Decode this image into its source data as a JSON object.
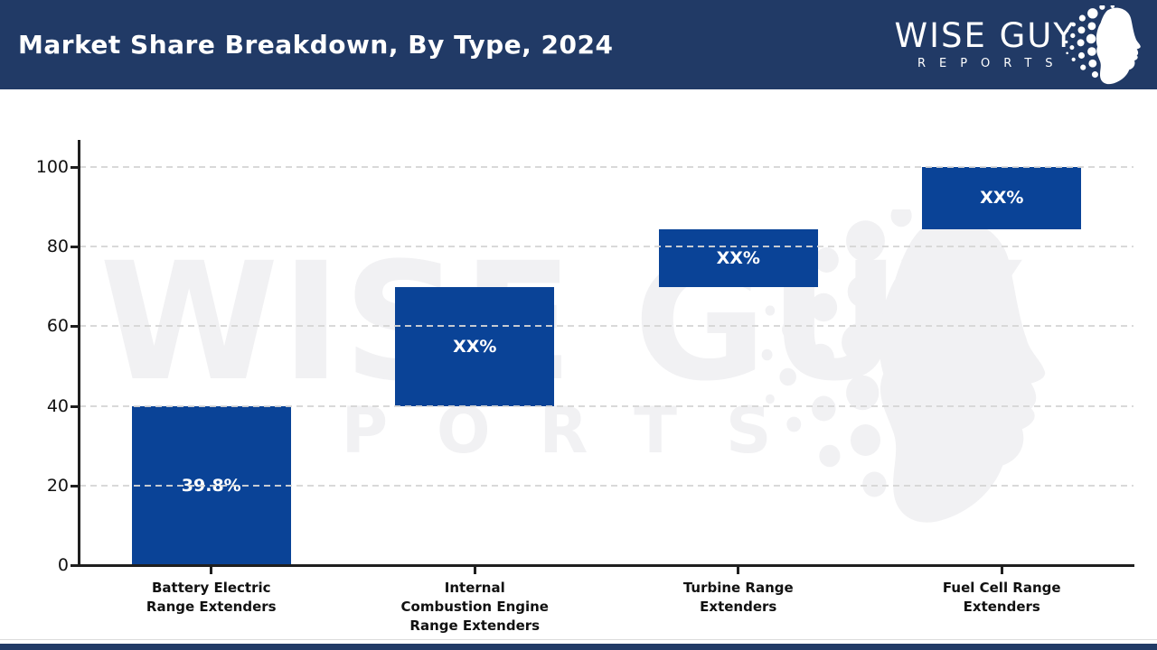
{
  "header": {
    "title": "Market Share Breakdown, By Type, 2024",
    "background_color": "#213a66",
    "logo": {
      "line1": "WISE GUY",
      "line2": "REPORTS"
    }
  },
  "watermark": {
    "line1": "WISE GUY",
    "line2": "REPORTS"
  },
  "footer": {
    "background_color": "#213a66"
  },
  "chart_data": {
    "type": "bar",
    "variant": "floating-segment (stacked market-share steps)",
    "title": "Market Share Breakdown, By Type, 2024",
    "xlabel": "",
    "ylabel": "",
    "ylim": [
      0,
      106.3
    ],
    "yticks": [
      0,
      20,
      40,
      60,
      80,
      100
    ],
    "grid": "horizontal dashed",
    "grid_color": "#d6d6d6",
    "bar_color": "#0a4397",
    "bar_label_color": "#ffffff",
    "axis_color": "#1f1f1f",
    "bars": [
      {
        "category": "Battery Electric Range Extenders",
        "category_lines": [
          "Battery Electric",
          "Range Extenders"
        ],
        "start": 0,
        "end": 39.8,
        "label": "39.8%"
      },
      {
        "category": "Internal Combustion Engine Range Extenders",
        "category_lines": [
          "Internal",
          "Combustion Engine",
          "Range Extenders"
        ],
        "start": 39.8,
        "end": 69.8,
        "label": "XX%"
      },
      {
        "category": "Turbine Range Extenders",
        "category_lines": [
          "Turbine Range",
          "Extenders"
        ],
        "start": 69.8,
        "end": 84.3,
        "label": "XX%"
      },
      {
        "category": "Fuel Cell Range Extenders",
        "category_lines": [
          "Fuel Cell Range",
          "Extenders"
        ],
        "start": 84.4,
        "end": 100,
        "label": "XX%"
      }
    ]
  }
}
